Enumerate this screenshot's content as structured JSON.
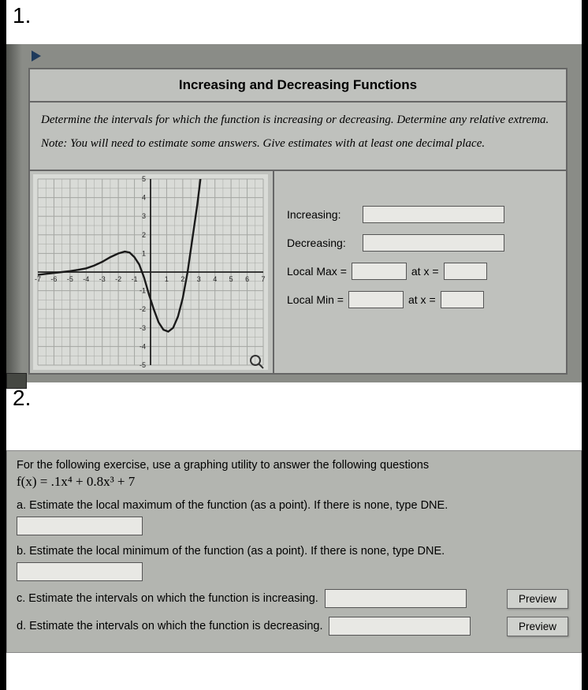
{
  "q1": {
    "number": "1.",
    "title": "Increasing and Decreasing Functions",
    "instructions_line1": "Determine the intervals for which the function is increasing or decreasing. Determine any relative extrema.",
    "instructions_line2": "Note: You will need to estimate some answers. Give estimates with at least one decimal place.",
    "labels": {
      "increasing": "Increasing:",
      "decreasing": "Decreasing:",
      "localmax": "Local Max =",
      "localmin": "Local Min =",
      "atx": "at x ="
    },
    "graph": {
      "xmin": -7,
      "xmax": 7,
      "ymin": -5,
      "ymax": 5,
      "xticks": [
        -7,
        -6,
        -5,
        -4,
        -3,
        -2,
        -1,
        1,
        2,
        3,
        4,
        5,
        6,
        7
      ],
      "yticks": [
        -5,
        -4,
        -3,
        -2,
        -1,
        1,
        2,
        3,
        4,
        5
      ],
      "grid_color": "#a5a7a3",
      "axis_color": "#222",
      "curve_color": "#1a1a1a",
      "background": "#d9dbd7",
      "curve_points": [
        [
          -7,
          -0.15
        ],
        [
          -6.5,
          -0.1
        ],
        [
          -6,
          -0.05
        ],
        [
          -5.5,
          0
        ],
        [
          -5,
          0.05
        ],
        [
          -4.5,
          0.12
        ],
        [
          -4,
          0.2
        ],
        [
          -3.5,
          0.35
        ],
        [
          -3,
          0.55
        ],
        [
          -2.5,
          0.8
        ],
        [
          -2,
          1.0
        ],
        [
          -1.6,
          1.1
        ],
        [
          -1.3,
          1.05
        ],
        [
          -1,
          0.8
        ],
        [
          -0.7,
          0.4
        ],
        [
          -0.4,
          -0.3
        ],
        [
          -0.1,
          -1.2
        ],
        [
          0.2,
          -2.0
        ],
        [
          0.5,
          -2.7
        ],
        [
          0.8,
          -3.1
        ],
        [
          1.1,
          -3.2
        ],
        [
          1.4,
          -3.0
        ],
        [
          1.7,
          -2.4
        ],
        [
          2.0,
          -1.4
        ],
        [
          2.3,
          0.0
        ],
        [
          2.6,
          1.8
        ],
        [
          2.9,
          3.6
        ],
        [
          3.1,
          5.0
        ]
      ]
    }
  },
  "q2": {
    "number": "2.",
    "intro": "For the following exercise, use a graphing utility to answer the following questions",
    "formula": "f(x) = .1x⁴ + 0.8x³ + 7",
    "parts": {
      "a": "a. Estimate the local maximum of the function (as a point). If there is none, type DNE.",
      "b": "b. Estimate the local minimum of the function (as a point). If there is none, type DNE.",
      "c": "c. Estimate the intervals on which the function is increasing.",
      "d": "d. Estimate the intervals on which the function is decreasing."
    },
    "preview": "Preview"
  }
}
